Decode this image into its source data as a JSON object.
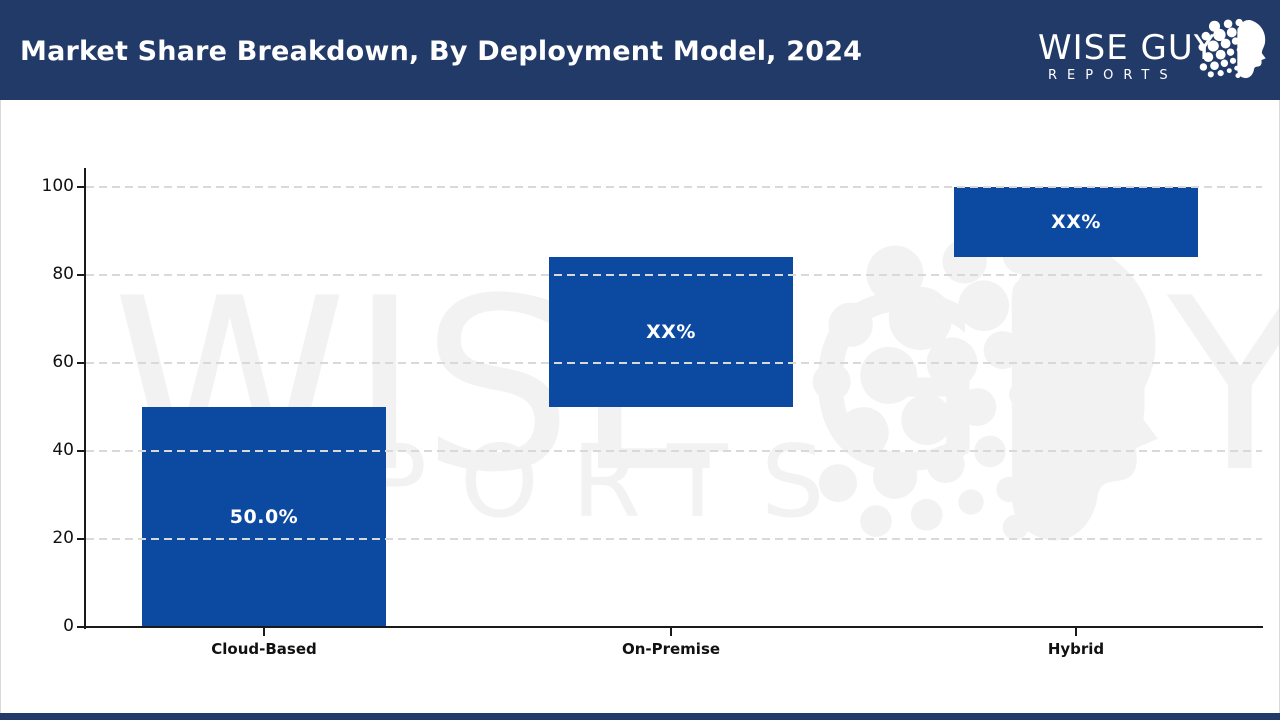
{
  "header": {
    "title": "Market Share Breakdown, By Deployment Model, 2024",
    "logo": {
      "brand": "WISE GUY",
      "sub": "REPORTS"
    }
  },
  "watermark": {
    "line1": "WISE GUY",
    "line2": "REPORTS"
  },
  "chart_data": {
    "type": "bar",
    "variant": "waterfall",
    "title": "Market Share Breakdown, By Deployment Model, 2024",
    "categories": [
      "Cloud-Based",
      "On-Premise",
      "Hybrid"
    ],
    "segments": [
      {
        "category": "Cloud-Based",
        "start": 0,
        "end": 50,
        "label": "50.0%"
      },
      {
        "category": "On-Premise",
        "start": 50,
        "end": 84,
        "label": "XX%"
      },
      {
        "category": "Hybrid",
        "start": 84,
        "end": 100,
        "label": "XX%"
      }
    ],
    "yticks": [
      0,
      20,
      40,
      60,
      80,
      100
    ],
    "ylim": [
      0,
      105
    ],
    "grid": "horizontal-dashed",
    "legend": "none",
    "xlabel": "",
    "ylabel": ""
  },
  "colors": {
    "header_bg": "#213a68",
    "footer_bg": "#213a68",
    "bar": "#0c4aa2",
    "bar_label": "#ffffff",
    "grid": "#d9d9d9",
    "axis": "#1a1a1a",
    "watermark": "#f2f2f2",
    "title_text": "#ffffff"
  }
}
